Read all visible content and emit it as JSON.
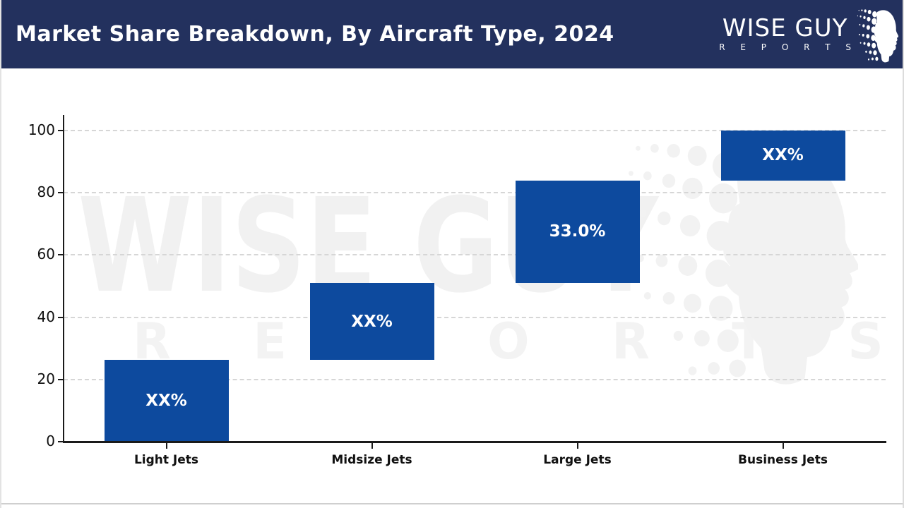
{
  "header": {
    "title": "Market Share Breakdown, By Aircraft Type, 2024",
    "logo": {
      "line1": "WISE GUY",
      "line2": "R E P O R T S"
    }
  },
  "watermark": {
    "line1": "WISE GUY",
    "line2": "R E P O R T S"
  },
  "chart_data": {
    "type": "bar",
    "subtype": "floating-waterfall",
    "title": "Market Share Breakdown, By Aircraft Type, 2024",
    "categories": [
      "Light Jets",
      "Midsize Jets",
      "Large Jets",
      "Business Jets"
    ],
    "bars": [
      {
        "category": "Light Jets",
        "start": 0,
        "end": 26.3,
        "label": "XX%"
      },
      {
        "category": "Midsize Jets",
        "start": 26.3,
        "end": 51.0,
        "label": "XX%"
      },
      {
        "category": "Large Jets",
        "start": 51.0,
        "end": 84.0,
        "label": "33.0%"
      },
      {
        "category": "Business Jets",
        "start": 84.0,
        "end": 100.0,
        "label": "XX%"
      }
    ],
    "xlabel": "",
    "ylabel": "",
    "yticks": [
      0,
      20,
      40,
      60,
      80,
      100
    ],
    "ylim": [
      0,
      105
    ],
    "grid": "horizontal-dashed",
    "legend": "none",
    "colors": {
      "bar": "#0d4a9e",
      "bar_label": "#ffffff",
      "grid": "#d6d6d6",
      "axis": "#1a1a1a",
      "header_bg": "#23315e",
      "watermark": "#f1f1f1"
    }
  }
}
